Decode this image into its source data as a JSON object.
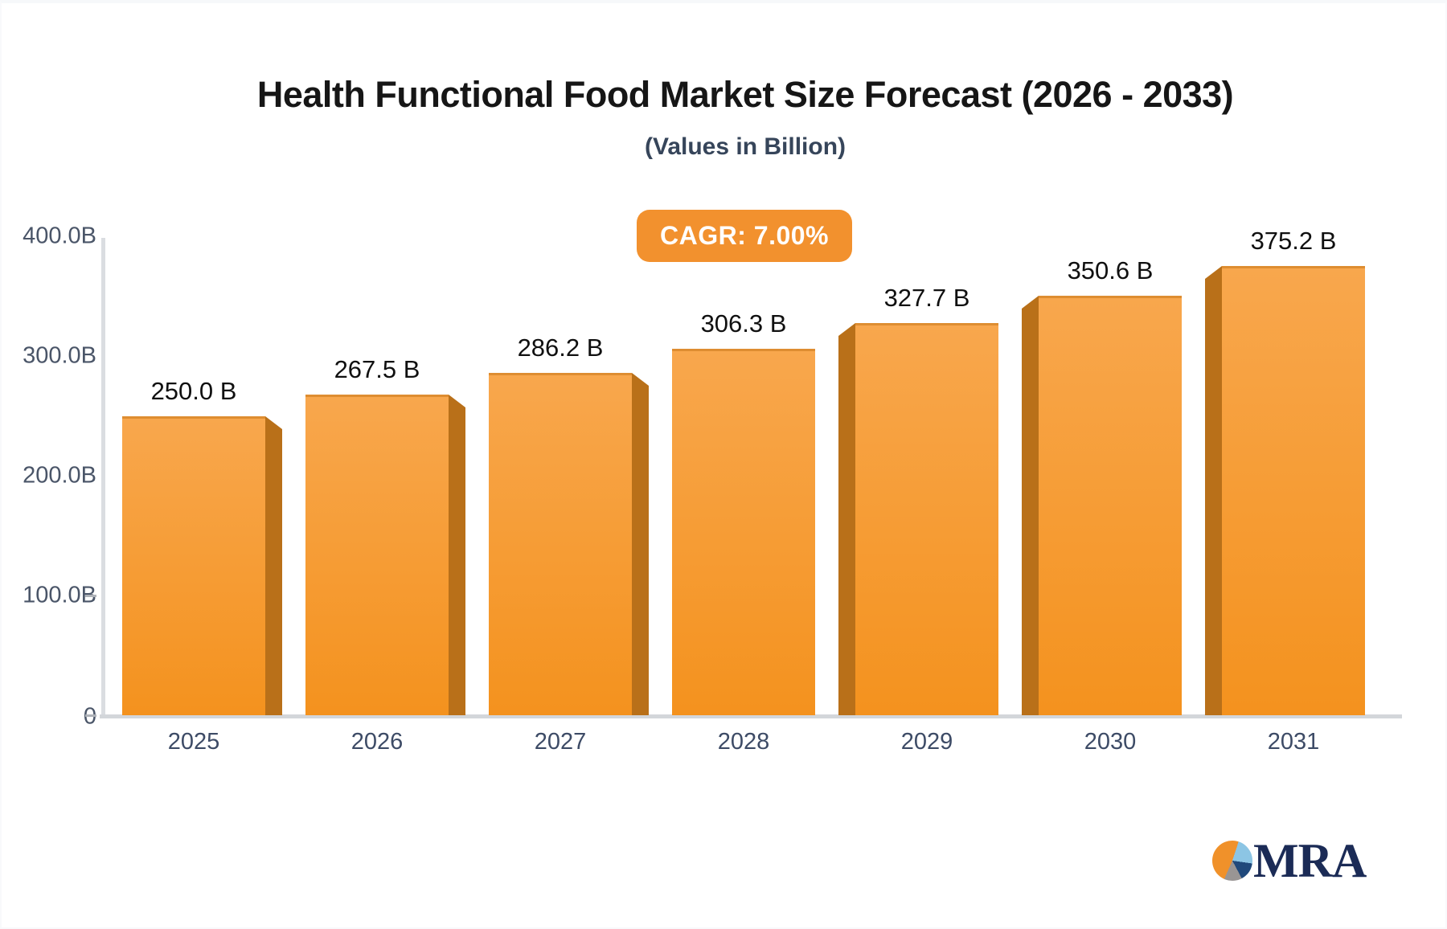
{
  "header": {
    "title": "Health Functional Food Market Size Forecast (2026 - 2033)",
    "subtitle": "(Values in Billion)"
  },
  "cagr_badge": {
    "label": "CAGR: 7.00%",
    "color": "#f2912e"
  },
  "chart_data": {
    "type": "bar",
    "title": "Health Functional Food Market Size Forecast (2026 - 2033)",
    "subtitle": "(Values in Billion)",
    "unit": "Billion",
    "categories": [
      "2025",
      "2026",
      "2027",
      "2028",
      "2029",
      "2030",
      "2031"
    ],
    "values": [
      250.0,
      267.5,
      286.2,
      306.3,
      327.7,
      350.6,
      375.2
    ],
    "value_labels": [
      "250.0 B",
      "267.5 B",
      "286.2 B",
      "306.3 B",
      "327.7 B",
      "350.6 B",
      "375.2 B"
    ],
    "ylim": [
      0,
      400
    ],
    "yticks": {
      "values": [
        400,
        300,
        200,
        100,
        0
      ],
      "labels": [
        "400.0B",
        "300.0B",
        "200.0B",
        "100.0B",
        "0"
      ]
    },
    "grid": false,
    "legend": null,
    "bar_color_top": "#f8a74d",
    "bar_color_bottom": "#f4921e",
    "bar_side_color": "#b97019"
  },
  "logo": {
    "text": "MRA",
    "pie_colors": [
      "#f0912a",
      "#8cc5e4",
      "#20497b",
      "#999594"
    ],
    "text_color": "#1b2b56"
  }
}
